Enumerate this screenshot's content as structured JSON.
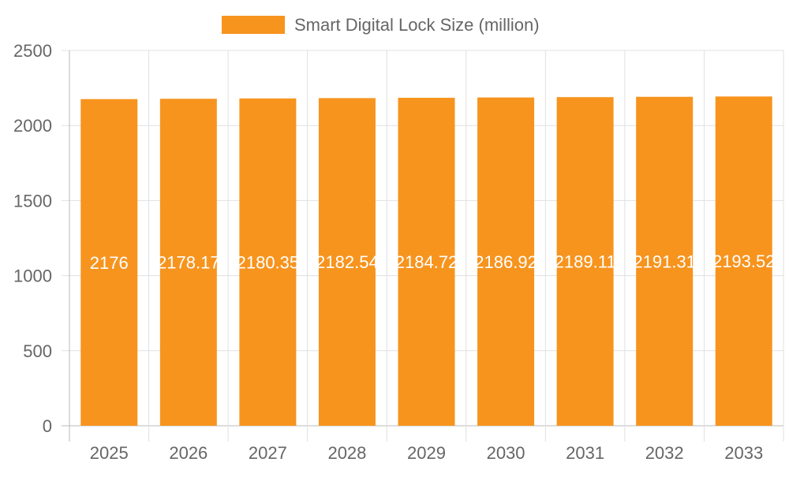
{
  "chart_data": {
    "type": "bar",
    "categories": [
      "2025",
      "2026",
      "2027",
      "2028",
      "2029",
      "2030",
      "2031",
      "2032",
      "2033"
    ],
    "series": [
      {
        "name": "Smart Digital Lock Size (million)",
        "values": [
          2176,
          2178.17,
          2180.35,
          2182.54,
          2184.72,
          2186.92,
          2189.11,
          2191.31,
          2193.52
        ],
        "color": "#f7941e"
      }
    ],
    "yticks": [
      "0",
      "500",
      "1000",
      "1500",
      "2000",
      "2500"
    ],
    "ylim": [
      0,
      2500
    ],
    "grid": true,
    "legend_position": "top",
    "data_labels": [
      "2176",
      "2178.17",
      "2180.35",
      "2182.54",
      "2184.72",
      "2186.92",
      "2189.11",
      "2191.31",
      "2193.52"
    ]
  }
}
